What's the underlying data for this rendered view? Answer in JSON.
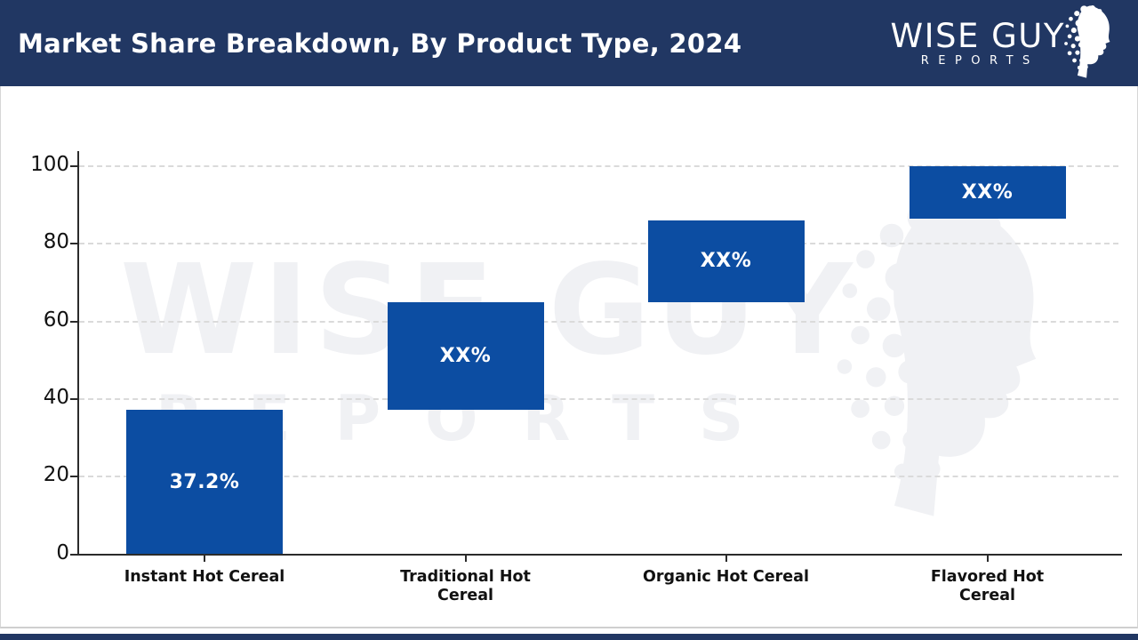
{
  "header": {
    "title": "Market Share Breakdown, By Product Type, 2024",
    "logo": {
      "line1": "WISE GUY",
      "line2": "REPORTS"
    }
  },
  "watermark": {
    "line1": "WISE GUY",
    "line2": "REPORTS"
  },
  "chart_data": {
    "type": "bar",
    "subtype": "waterfall",
    "title": "Market Share Breakdown, By Product Type, 2024",
    "categories": [
      "Instant Hot Cereal",
      "Traditional Hot\nCereal",
      "Organic Hot Cereal",
      "Flavored Hot\nCereal"
    ],
    "segments": [
      {
        "start": 0,
        "end": 37.2,
        "label": "37.2%"
      },
      {
        "start": 37.2,
        "end": 65,
        "label": "XX%"
      },
      {
        "start": 65,
        "end": 86,
        "label": "XX%"
      },
      {
        "start": 86.5,
        "end": 100,
        "label": "XX%"
      }
    ],
    "ylim": [
      0,
      100
    ],
    "yticks": [
      0,
      20,
      40,
      60,
      80,
      100
    ],
    "grid": "horizontal-dashed",
    "bar_color": "#0C4DA2",
    "value_label_color": "#ffffff"
  },
  "colors": {
    "header_navy": "#213763",
    "bar_blue": "#0C4DA2",
    "gridline": "#dadada",
    "watermark": "#f0f1f4"
  }
}
